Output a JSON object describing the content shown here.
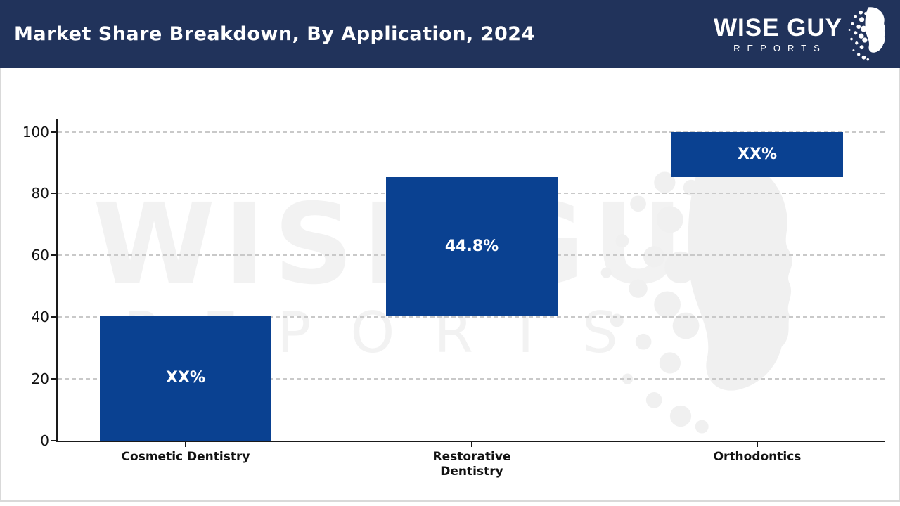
{
  "header": {
    "title": "Market Share Breakdown, By Application, 2024",
    "logo": {
      "brand_line1": "WISE GUY",
      "brand_line2": "REPORTS"
    }
  },
  "watermark": {
    "line1": "WISE GUY",
    "line2": "REPORTS"
  },
  "chart_data": {
    "type": "bar",
    "subtype": "stacked-waterfall",
    "title": "Market Share Breakdown, By Application, 2024",
    "categories": [
      "Cosmetic Dentistry",
      "Restorative\nDentistry",
      "Orthodontics"
    ],
    "series": [
      {
        "name": "Market Share %",
        "bars": [
          {
            "category": "Cosmetic Dentistry",
            "start": 0,
            "end": 40.6,
            "label": "XX%"
          },
          {
            "category": "Restorative Dentistry",
            "start": 40.6,
            "end": 85.4,
            "label": "44.8%"
          },
          {
            "category": "Orthodontics",
            "start": 85.4,
            "end": 100,
            "label": "XX%"
          }
        ]
      }
    ],
    "xlabel": "",
    "ylabel": "",
    "ylim": [
      0,
      104
    ],
    "yticks": [
      0,
      20,
      40,
      60,
      80,
      100
    ],
    "grid": "horizontal-dashed",
    "legend": "none",
    "colors": {
      "bar": "#0a4191",
      "bar_label": "#ffffff",
      "grid": "#c9c9c9",
      "axis": "#1a1a1a",
      "tick_label": "#111111",
      "header_bg": "#21335b",
      "watermark": "#f2f2f2"
    }
  }
}
